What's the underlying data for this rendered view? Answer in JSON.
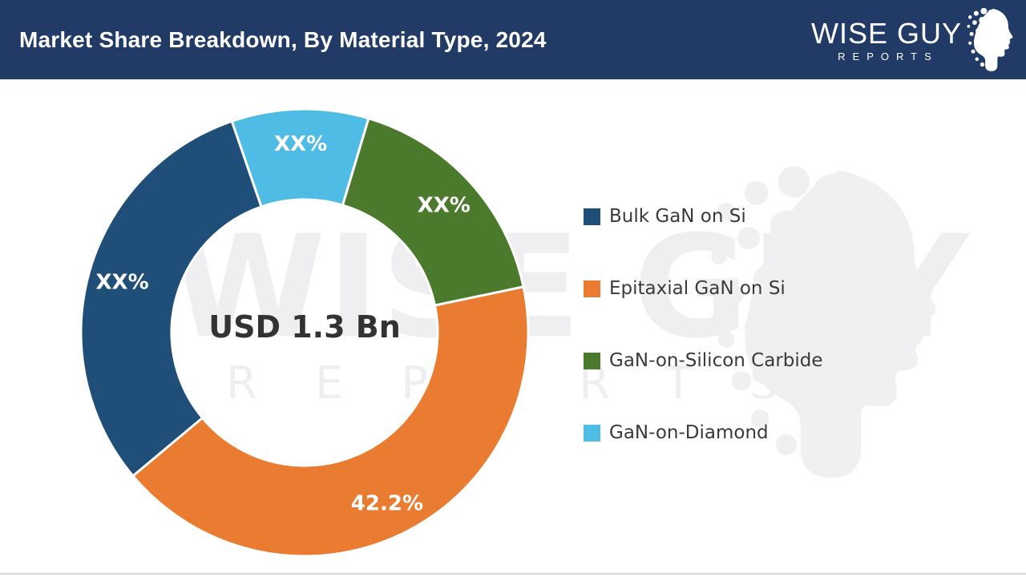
{
  "colors": {
    "header_bg": "#213A66",
    "watermark": "#EFEFF2",
    "hairline": "#D9D9D9",
    "legend_text": "#3A3A3A",
    "center_text": "#333333"
  },
  "header": {
    "title": "Market Share Breakdown, By Material Type, 2024"
  },
  "logo": {
    "line1": "WISE GUY",
    "line2": "REPORTS",
    "head_icon": "dotted-head-profile"
  },
  "watermark": {
    "line1": "WISE GUY",
    "line2": "REPORTS",
    "head_icon": "dotted-head-profile"
  },
  "chart_data": {
    "type": "pie",
    "subtype": "donut",
    "title": "Market Share Breakdown, By Material Type, 2024",
    "center_label": "USD 1.3 Bn",
    "start_angle_deg": 341,
    "direction": "clockwise",
    "inner_radius_ratio": 0.595,
    "segments": [
      {
        "name": "GaN-on-Diamond",
        "label": "XX%",
        "value_pct": 9.9,
        "color": "#4FBCE5"
      },
      {
        "name": "GaN-on-Silicon Carbide",
        "label": "XX%",
        "value_pct": 17.1,
        "color": "#4B7A2C"
      },
      {
        "name": "Epitaxial GaN on Si",
        "label": "42.2%",
        "value_pct": 42.2,
        "color": "#EA7C31"
      },
      {
        "name": "Bulk GaN on Si",
        "label": "XX%",
        "value_pct": 30.8,
        "color": "#1F4E78"
      }
    ],
    "legend_position": "right",
    "legend": [
      {
        "label": "Bulk GaN on Si",
        "color": "#1F4E78"
      },
      {
        "label": "Epitaxial GaN on Si",
        "color": "#EA7C31"
      },
      {
        "label": "GaN-on-Silicon Carbide",
        "color": "#4B7A2C"
      },
      {
        "label": "GaN-on-Diamond",
        "color": "#4FBCE5"
      }
    ]
  }
}
